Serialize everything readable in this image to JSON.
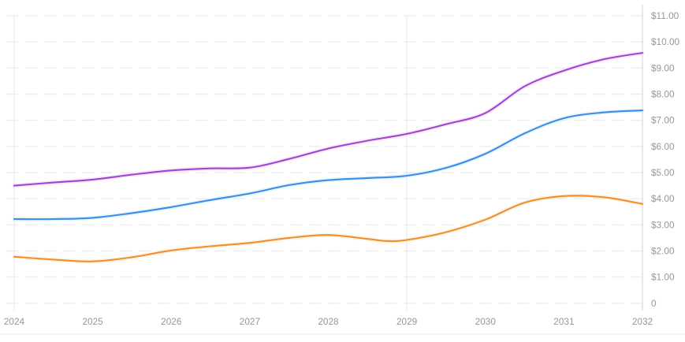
{
  "chart_data": {
    "type": "line",
    "title": "",
    "xlabel": "",
    "ylabel": "",
    "x_axis": {
      "tick_labels": [
        "2024",
        "2025",
        "2026",
        "2027",
        "2028",
        "2029",
        "2030",
        "2031",
        "2032"
      ],
      "range": [
        2024,
        2032
      ],
      "position": "bottom"
    },
    "y_axis": {
      "tick_labels": [
        "$11.00",
        "$10.00",
        "$9.00",
        "$8.00",
        "$7.00",
        "$6.00",
        "$5.00",
        "$4.00",
        "$3.00",
        "$2.00",
        "$1.00",
        "0"
      ],
      "tick_values": [
        11,
        10,
        9,
        8,
        7,
        6,
        5,
        4,
        3,
        2,
        1,
        0
      ],
      "range": [
        0,
        11
      ],
      "position": "right",
      "currency": "$"
    },
    "grid": {
      "horizontal": "dashed",
      "vertical_reference_years": [
        2024,
        2029
      ],
      "gridline_color": "#ededf1",
      "vertical_line_color": "#e7e7ec",
      "axis_line_color": "#d9d9de",
      "bottom_border_color": "#ececef"
    },
    "label_color": "#97979d",
    "legend": null,
    "series": [
      {
        "name": "purple-line",
        "color": "#a244d0",
        "halo_color": "#eddaf8",
        "points": [
          [
            2024,
            4.5
          ],
          [
            2024.5,
            4.62
          ],
          [
            2025,
            4.73
          ],
          [
            2025.5,
            4.92
          ],
          [
            2026,
            5.08
          ],
          [
            2026.5,
            5.16
          ],
          [
            2027,
            5.19
          ],
          [
            2027.5,
            5.52
          ],
          [
            2028,
            5.92
          ],
          [
            2028.5,
            6.22
          ],
          [
            2029,
            6.48
          ],
          [
            2029.5,
            6.85
          ],
          [
            2030,
            7.28
          ],
          [
            2030.5,
            8.3
          ],
          [
            2031,
            8.9
          ],
          [
            2031.5,
            9.33
          ],
          [
            2032,
            9.58
          ]
        ]
      },
      {
        "name": "blue-line",
        "color": "#3b8de8",
        "halo_color": "#d9ebfc",
        "points": [
          [
            2024,
            3.22
          ],
          [
            2024.5,
            3.22
          ],
          [
            2025,
            3.27
          ],
          [
            2025.5,
            3.45
          ],
          [
            2026,
            3.68
          ],
          [
            2026.5,
            3.95
          ],
          [
            2027,
            4.2
          ],
          [
            2027.5,
            4.52
          ],
          [
            2028,
            4.71
          ],
          [
            2028.5,
            4.79
          ],
          [
            2029,
            4.88
          ],
          [
            2029.5,
            5.18
          ],
          [
            2030,
            5.72
          ],
          [
            2030.5,
            6.5
          ],
          [
            2031,
            7.08
          ],
          [
            2031.5,
            7.3
          ],
          [
            2032,
            7.38
          ]
        ]
      },
      {
        "name": "orange-line",
        "color": "#ef8f2f",
        "halo_color": "#fdebd2",
        "points": [
          [
            2024,
            1.78
          ],
          [
            2024.5,
            1.67
          ],
          [
            2025,
            1.6
          ],
          [
            2025.5,
            1.76
          ],
          [
            2026,
            2.02
          ],
          [
            2026.5,
            2.18
          ],
          [
            2027,
            2.31
          ],
          [
            2027.5,
            2.5
          ],
          [
            2028,
            2.61
          ],
          [
            2028.5,
            2.46
          ],
          [
            2028.75,
            2.38
          ],
          [
            2029,
            2.42
          ],
          [
            2029.5,
            2.72
          ],
          [
            2030,
            3.2
          ],
          [
            2030.5,
            3.85
          ],
          [
            2031,
            4.1
          ],
          [
            2031.5,
            4.06
          ],
          [
            2032,
            3.8
          ]
        ]
      }
    ]
  }
}
